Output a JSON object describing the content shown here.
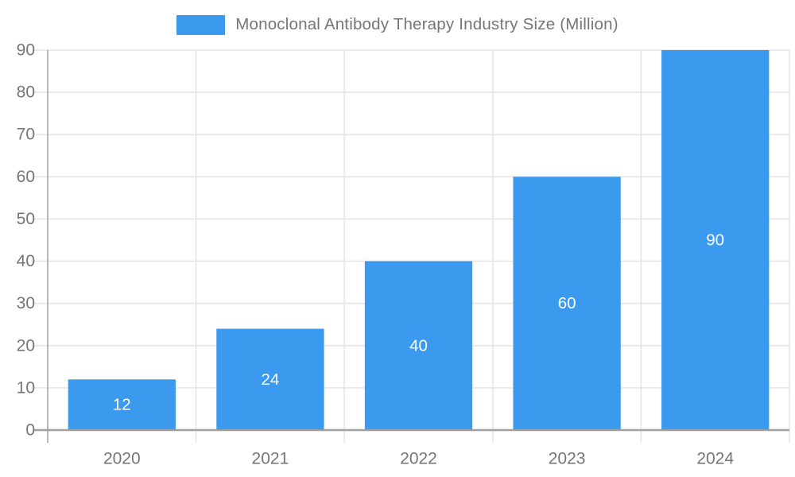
{
  "chart_data": {
    "type": "bar",
    "title": "Monoclonal Antibody Therapy Industry Size (Million)",
    "categories": [
      "2020",
      "2021",
      "2022",
      "2023",
      "2024"
    ],
    "values": [
      12,
      24,
      40,
      60,
      90
    ],
    "bar_labels": [
      "12",
      "24",
      "40",
      "60",
      "90"
    ],
    "xlabel": "",
    "ylabel": "",
    "ylim": [
      0,
      90
    ],
    "yticks": [
      0,
      10,
      20,
      30,
      40,
      50,
      60,
      70,
      80,
      90
    ],
    "grid": true,
    "legend_position": "top",
    "bar_color": "#3b99ee",
    "bar_label_color": "#ffffff",
    "axis_label_color": "#757575",
    "grid_color": "#e4e4e4",
    "axis_line_color": "#a0a0a0"
  }
}
